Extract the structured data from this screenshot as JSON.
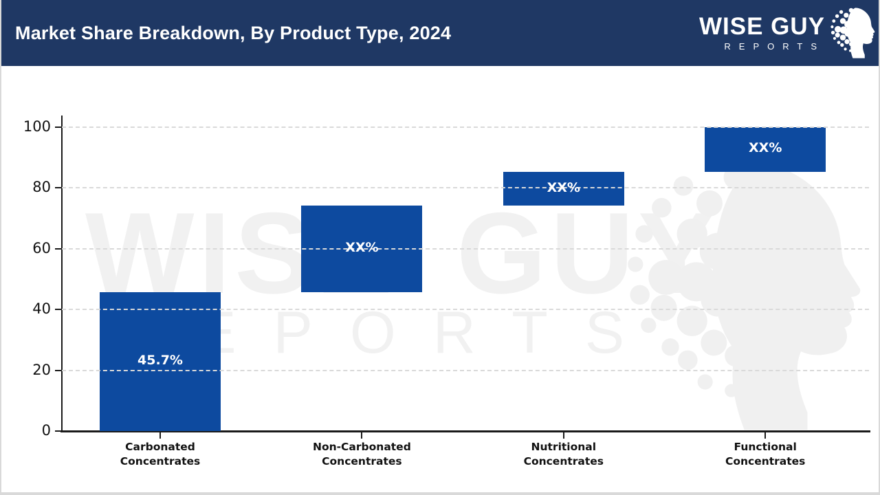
{
  "header": {
    "title": "Market Share Breakdown, By Product Type, 2024",
    "logo": {
      "title": "WISE GUY",
      "subtitle": "REPORTS"
    },
    "bg_color": "#1f3864"
  },
  "watermark": {
    "line1": "WISE GUY",
    "line2": "REPORTS"
  },
  "chart_data": {
    "type": "bar",
    "subtype": "waterfall",
    "title": "Market Share Breakdown, By Product Type, 2024",
    "categories": [
      "Carbonated Concentrates",
      "Non-Carbonated Concentrates",
      "Nutritional Concentrates",
      "Functional Concentrates"
    ],
    "bars": [
      {
        "category_lines": [
          "Carbonated",
          "Concentrates"
        ],
        "base": 0,
        "top": 45.7,
        "label": "45.7%"
      },
      {
        "category_lines": [
          "Non-Carbonated",
          "Concentrates"
        ],
        "base": 45.7,
        "top": 74.2,
        "label": "XX%"
      },
      {
        "category_lines": [
          "Nutritional",
          "Concentrates"
        ],
        "base": 74.2,
        "top": 85.3,
        "label": "XX%"
      },
      {
        "category_lines": [
          "Functional",
          "Concentrates"
        ],
        "base": 85.3,
        "top": 100,
        "label": "XX%"
      }
    ],
    "ylim": [
      0,
      100
    ],
    "yticks": [
      0,
      20,
      40,
      60,
      80,
      100
    ],
    "xlabel": "",
    "ylabel": "",
    "grid": "horizontal-dashed-above-bars",
    "legend": "none",
    "bar_color": "#0d4a9f",
    "bar_label_color": "#ffffff",
    "axis_color": "#1a1a1a"
  }
}
